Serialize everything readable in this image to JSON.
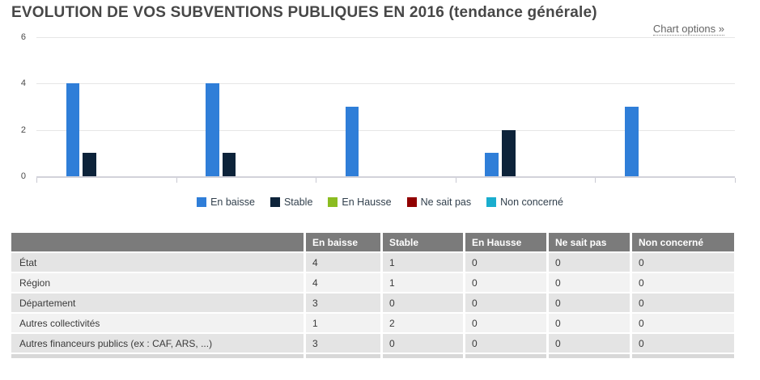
{
  "page": {
    "title": "EVOLUTION DE VOS SUBVENTIONS PUBLIQUES EN 2016 (tendance générale)",
    "chart_options_label": "Chart options »"
  },
  "chart_data": {
    "type": "bar",
    "title": "EVOLUTION DE VOS SUBVENTIONS PUBLIQUES EN 2016 (tendance générale)",
    "categories": [
      "État",
      "Région",
      "Département",
      "Autres collectivités",
      "Autres financeurs publics (ex : CAF, ARS, ...)"
    ],
    "series": [
      {
        "name": "En baisse",
        "color": "#2f7ed8",
        "values": [
          4,
          4,
          3,
          1,
          3
        ]
      },
      {
        "name": "Stable",
        "color": "#0d233a",
        "values": [
          1,
          1,
          0,
          2,
          0
        ]
      },
      {
        "name": "En Hausse",
        "color": "#8bbc21",
        "values": [
          0,
          0,
          0,
          0,
          0
        ]
      },
      {
        "name": "Ne sait pas",
        "color": "#910000",
        "values": [
          0,
          0,
          0,
          0,
          0
        ]
      },
      {
        "name": "Non concerné",
        "color": "#1aadce",
        "values": [
          0,
          0,
          0,
          0,
          0
        ]
      }
    ],
    "xlabel": "",
    "ylabel": "",
    "ylim": [
      0,
      6
    ],
    "yticks": [
      0,
      2,
      4,
      6
    ],
    "grid": true,
    "legend_position": "bottom",
    "axis_color": "#d2d2da",
    "gridline_color": "#e6e6e6"
  },
  "table": {
    "columns": [
      "",
      "En baisse",
      "Stable",
      "En Hausse",
      "Ne sait pas",
      "Non concerné"
    ],
    "rows": [
      {
        "label": "État",
        "values": [
          4,
          1,
          0,
          0,
          0
        ]
      },
      {
        "label": "Région",
        "values": [
          4,
          1,
          0,
          0,
          0
        ]
      },
      {
        "label": "Département",
        "values": [
          3,
          0,
          0,
          0,
          0
        ]
      },
      {
        "label": "Autres collectivités",
        "values": [
          1,
          2,
          0,
          0,
          0
        ]
      },
      {
        "label": "Autres financeurs publics (ex : CAF, ARS, ...)",
        "values": [
          3,
          0,
          0,
          0,
          0
        ]
      }
    ],
    "header_bg": "#7b7b7b",
    "row_bg_dark": "#e4e4e4",
    "row_bg_light": "#f2f2f2"
  }
}
